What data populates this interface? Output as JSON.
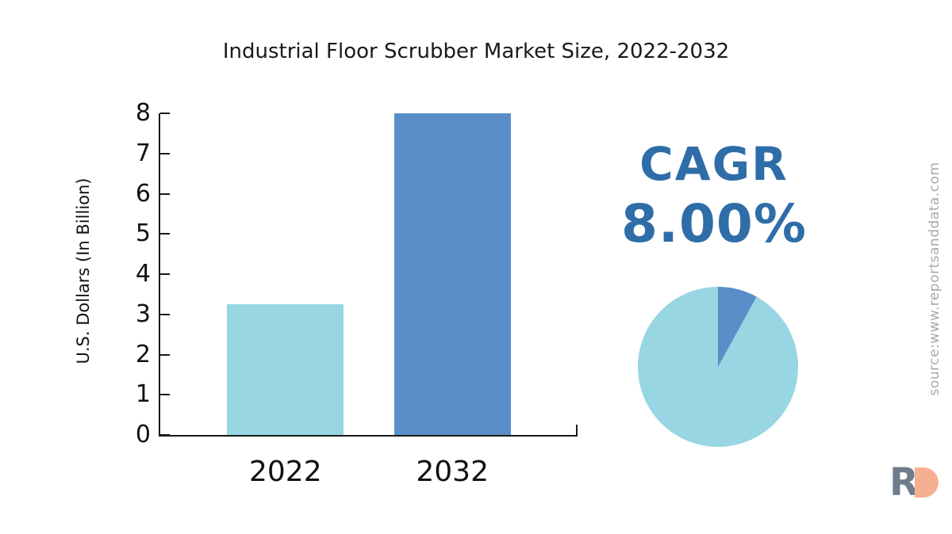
{
  "title": "Industrial Floor Scrubber Market Size, 2022-2032",
  "chart_data": {
    "type": "bar",
    "title": "Industrial Floor Scrubber Market Size, 2022-2032",
    "categories": [
      "2022",
      "2032"
    ],
    "values": [
      3.25,
      8
    ],
    "xlabel": "",
    "ylabel": "U.S. Dollars (In Billion)",
    "ylim": [
      0,
      8
    ],
    "yticks": [
      0,
      1,
      2,
      3,
      4,
      5,
      6,
      7,
      8
    ],
    "bar_colors": [
      "#99d6e4",
      "#5a8ec9"
    ],
    "grid": false,
    "legend": "none"
  },
  "cagr": {
    "label": "CAGR",
    "value": "8.00%",
    "text_color": "#2e6da8",
    "pie": {
      "type": "pie",
      "slice_pct": 8,
      "slice_color": "#5a8ec9",
      "base_color": "#97d6e2"
    }
  },
  "source": {
    "text": "source:www.reportsanddata.com"
  },
  "logo": {
    "letter": "R",
    "letter_color": "#6e7c8b",
    "d_color": "#f5b092"
  },
  "colors": {
    "axis": "#1a1a1a",
    "background": "#ffffff"
  }
}
